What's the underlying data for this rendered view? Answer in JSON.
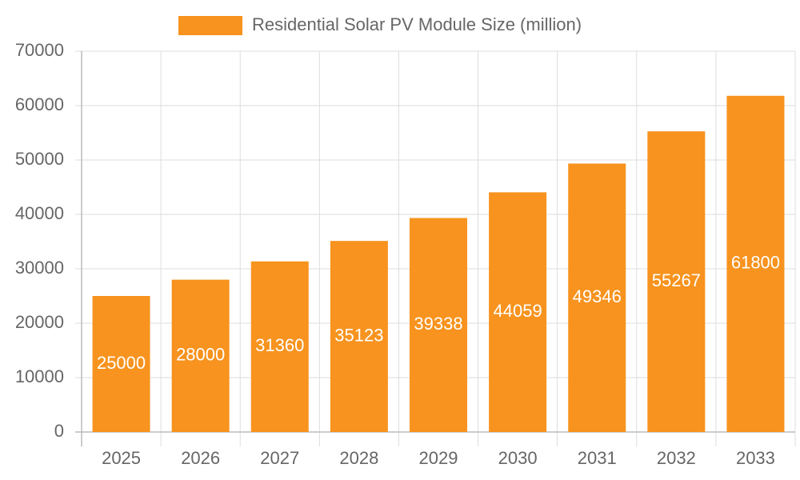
{
  "chart_data": {
    "type": "bar",
    "categories": [
      "2025",
      "2026",
      "2027",
      "2028",
      "2029",
      "2030",
      "2031",
      "2032",
      "2033"
    ],
    "series": [
      {
        "name": "Residential Solar PV Module Size (million)",
        "color": "#f7931e",
        "values": [
          25000,
          28000,
          31360,
          35123,
          39338,
          44059,
          49346,
          55267,
          61800
        ]
      }
    ],
    "ylim": [
      0,
      70000
    ],
    "yticks": [
      0,
      10000,
      20000,
      30000,
      40000,
      50000,
      60000,
      70000
    ],
    "grid": true,
    "value_labels_color": "#ffffff"
  }
}
